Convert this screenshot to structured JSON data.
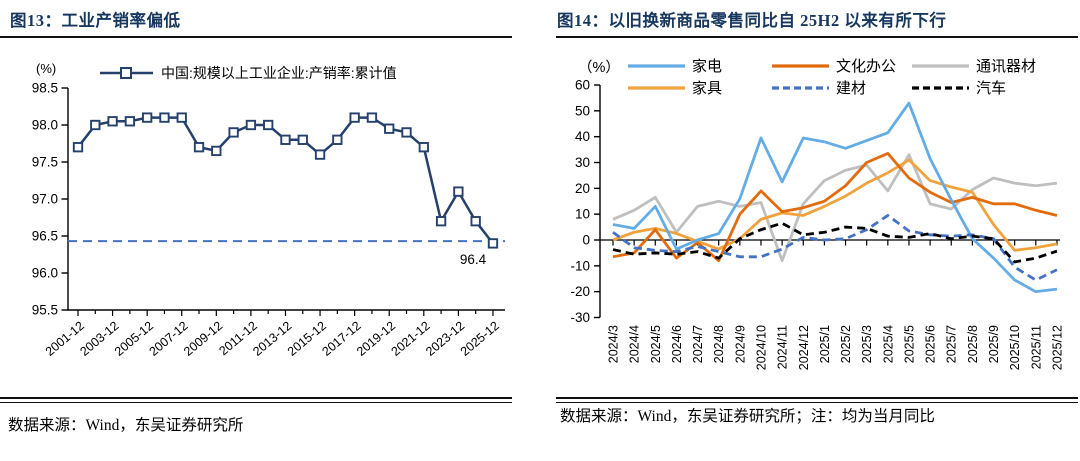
{
  "panels": {
    "left": {
      "title": "图13：工业产销率偏低",
      "source": "数据来源：Wind，东吴证券研究所"
    },
    "right": {
      "title": "图14：以旧换新商品零售同比自 25H2 以来有所下行",
      "source": "数据来源：Wind，东吴证券研究所；注：均为当月同比"
    }
  },
  "colors": {
    "title_navy": "#17375E",
    "series_navy": "#26406C",
    "ref_blue": "#4472C4",
    "rule_black": "#111111"
  },
  "chart_data": [
    {
      "type": "line",
      "figure_no": "图13",
      "title": "工业产销率偏低",
      "unit_label": "(%)",
      "legend_label": "中国:规模以上工业企业:产销率:累计值",
      "categories": [
        "2001-12",
        "2002-12",
        "2003-12",
        "2004-12",
        "2005-12",
        "2006-12",
        "2007-12",
        "2008-12",
        "2009-12",
        "2010-12",
        "2011-12",
        "2012-12",
        "2013-12",
        "2014-12",
        "2015-12",
        "2016-12",
        "2017-12",
        "2018-12",
        "2019-12",
        "2020-12",
        "2021-12",
        "2022-12",
        "2023-12",
        "2024-12",
        "2025-12"
      ],
      "values": [
        97.7,
        98.0,
        98.05,
        98.05,
        98.1,
        98.1,
        98.1,
        97.7,
        97.65,
        97.9,
        98.0,
        98.0,
        97.8,
        97.8,
        97.6,
        97.8,
        98.1,
        98.1,
        97.95,
        97.9,
        97.7,
        96.7,
        97.1,
        96.7,
        96.4
      ],
      "ylim": [
        95.5,
        98.5
      ],
      "yticks": [
        98.5,
        98.0,
        97.5,
        97.0,
        96.5,
        96.0,
        95.5
      ],
      "x_label_every": 2,
      "line_color": "#26406C",
      "marker": "open-square",
      "ref_line": {
        "value": 96.43,
        "color": "#4472C4",
        "style": "dashed"
      },
      "annotation": {
        "text": "96.4",
        "x": "2025-12",
        "y": 96.4
      },
      "grid": false,
      "legend_position": "top"
    },
    {
      "type": "line",
      "figure_no": "图14",
      "title": "以旧换新商品零售同比自 25H2 以来有所下行",
      "unit_label": "（%）",
      "categories": [
        "2024/3",
        "2024/4",
        "2024/5",
        "2024/6",
        "2024/7",
        "2024/8",
        "2024/9",
        "2024/10",
        "2024/11",
        "2024/12",
        "2025/1",
        "2025/2",
        "2025/3",
        "2025/4",
        "2025/5",
        "2025/6",
        "2025/7",
        "2025/8",
        "2025/9",
        "2025/10",
        "2025/11",
        "2025/12"
      ],
      "ylim": [
        -30,
        60
      ],
      "yticks": [
        60,
        50,
        40,
        30,
        20,
        10,
        0,
        -10,
        -20,
        -30
      ],
      "grid": false,
      "legend_position": "top",
      "legend_rows": [
        [
          "家电",
          "文化办公",
          "通讯器材"
        ],
        [
          "家具",
          "建材",
          "汽车"
        ]
      ],
      "series": [
        {
          "id": "comm-equipment",
          "name": "通讯器材",
          "color": "#BFBFBF",
          "dash": false,
          "values": [
            8,
            11.5,
            16.5,
            3,
            13,
            15,
            13,
            14.5,
            -8,
            14,
            23,
            27,
            29,
            19,
            33,
            14,
            12,
            19.5,
            24,
            22,
            21,
            22
          ]
        },
        {
          "id": "furniture",
          "name": "家具",
          "color": "#F0A33C",
          "dash": false,
          "values": [
            0,
            3,
            4.5,
            2.5,
            -0.5,
            -3.5,
            0.5,
            8,
            10.5,
            9.5,
            13,
            17,
            22,
            26,
            31,
            23,
            20.5,
            18.5,
            6,
            -4,
            -3,
            -1.5
          ]
        },
        {
          "id": "culture-office",
          "name": "文化办公",
          "color": "#E26B0E",
          "dash": false,
          "values": [
            -6.5,
            -5,
            4,
            -7,
            -1,
            -8,
            10,
            19,
            11,
            12.5,
            15,
            21,
            30,
            33.5,
            24,
            18.5,
            14.5,
            16.5,
            14,
            14,
            11.5,
            9.5
          ]
        },
        {
          "id": "home-appliances",
          "name": "家电",
          "color": "#63ACE5",
          "dash": false,
          "values": [
            6,
            4.5,
            13,
            -3.5,
            0,
            2.5,
            16,
            39.5,
            22.5,
            39.5,
            38,
            35.5,
            38.5,
            41.5,
            53,
            31.5,
            15.5,
            0.5,
            -7,
            -15.5,
            -20,
            -19
          ]
        },
        {
          "id": "building-materials",
          "name": "建材",
          "color": "#4472C4",
          "dash": true,
          "values": [
            3,
            -3,
            -4,
            -4.5,
            -2.5,
            -4.5,
            -6.5,
            -6.5,
            -3.5,
            1,
            0,
            0.5,
            4,
            9.5,
            3.5,
            2,
            1.5,
            2,
            0.5,
            -10.5,
            -15.5,
            -11.5
          ]
        },
        {
          "id": "automobiles",
          "name": "汽车",
          "color": "#000000",
          "dash": true,
          "values": [
            -3.7,
            -5.5,
            -5,
            -5.5,
            -4.5,
            -7,
            0.5,
            4,
            6.5,
            2,
            3,
            5,
            4.5,
            1.5,
            1,
            2.5,
            0.5,
            1.5,
            0.5,
            -8.5,
            -7,
            -4.3
          ]
        }
      ]
    }
  ]
}
